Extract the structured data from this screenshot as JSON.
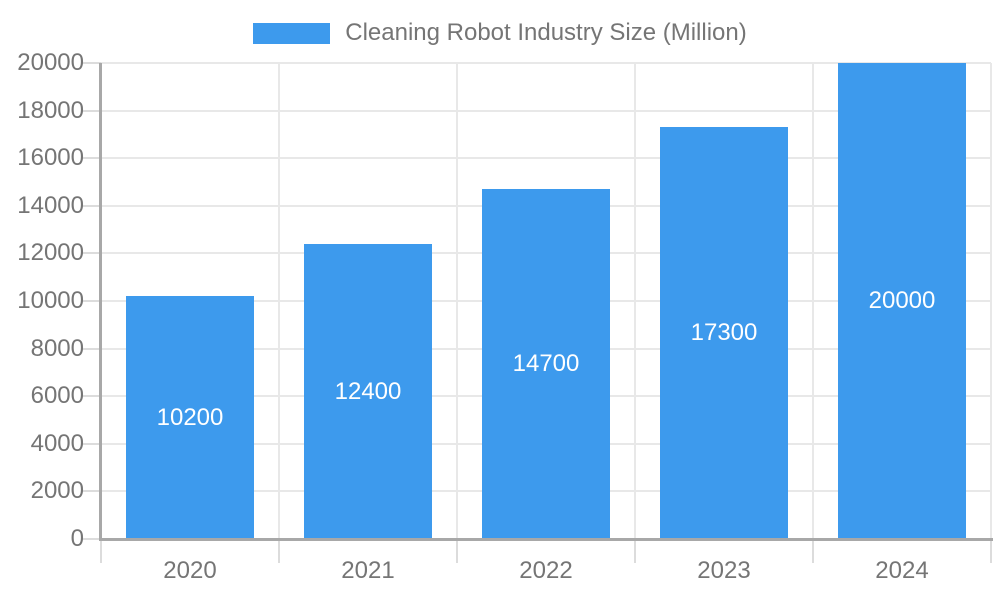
{
  "chart_data": {
    "type": "bar",
    "title": "Cleaning Robot Industry Size (Million)",
    "legend": {
      "label": "Cleaning Robot Industry Size (Million)",
      "position": "top-center"
    },
    "categories": [
      "2020",
      "2021",
      "2022",
      "2023",
      "2024"
    ],
    "values": [
      10200,
      12400,
      14700,
      17300,
      20000
    ],
    "bar_labels": [
      "10200",
      "12400",
      "14700",
      "17300",
      "20000"
    ],
    "bar_label_position": "inside-center",
    "xlabel": "",
    "ylabel": "",
    "ylim": [
      0,
      20000
    ],
    "ytick_step": 2000,
    "yticks": [
      0,
      2000,
      4000,
      6000,
      8000,
      10000,
      12000,
      14000,
      16000,
      18000,
      20000
    ],
    "grid": true,
    "colors": {
      "bar": "#3D9AED",
      "gridline": "#e8e8e8",
      "axis_line": "#a8a8a8",
      "tick": "#dcdcdc",
      "text": "#757575",
      "bar_label_text": "#ffffff",
      "background": "#ffffff"
    }
  }
}
